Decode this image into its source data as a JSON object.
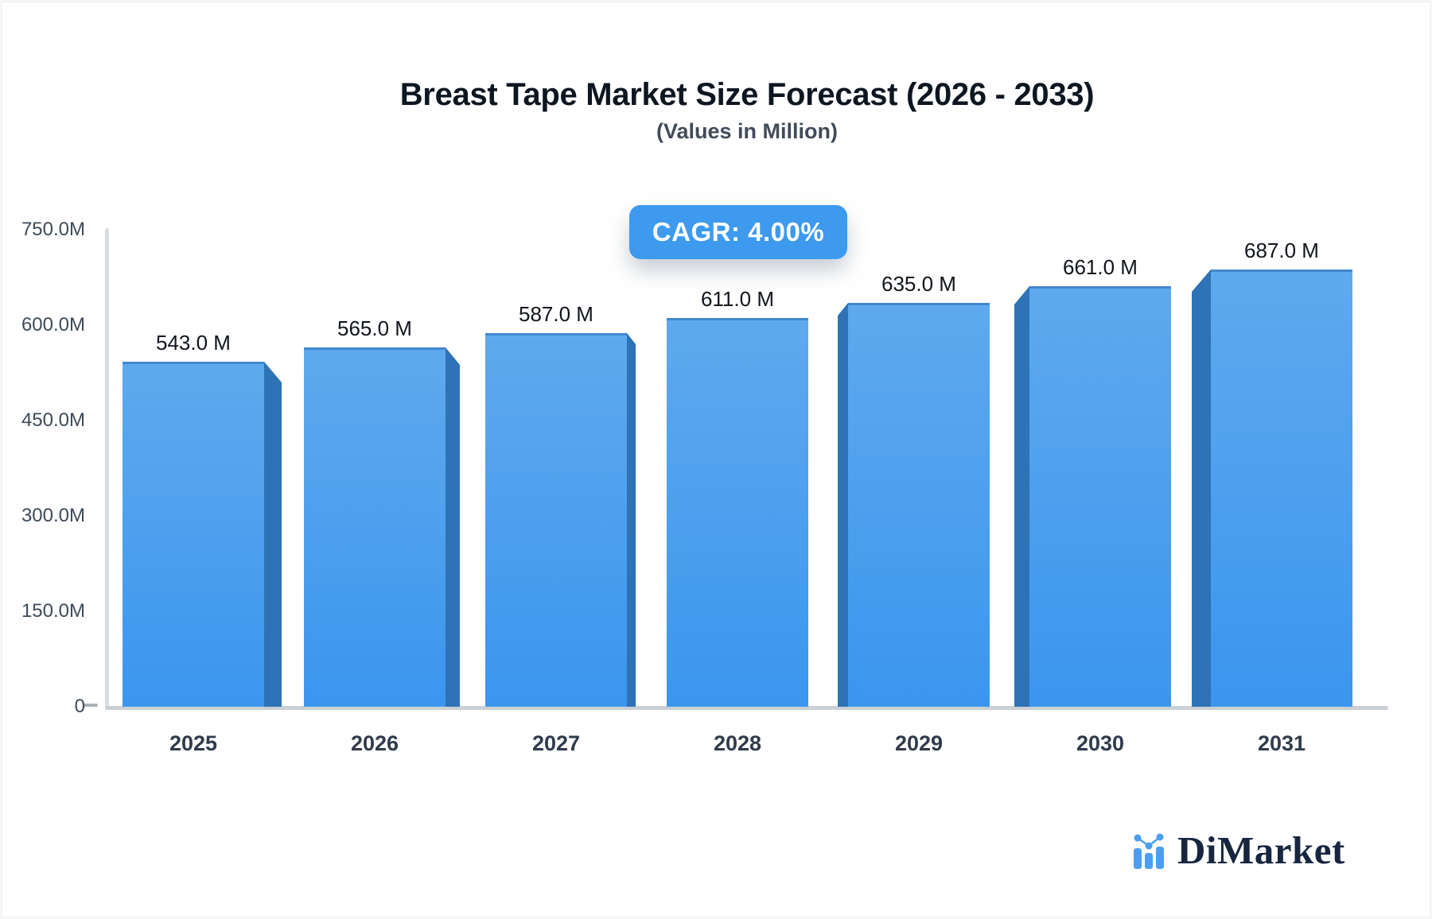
{
  "header": {
    "title": "Breast Tape Market Size Forecast (2026 - 2033)",
    "subtitle": "(Values in Million)"
  },
  "cagr_badge": {
    "label": "CAGR: 4.00%",
    "background_color": "#3D9AEE",
    "text_color": "#FFFFFF"
  },
  "chart_data": {
    "type": "bar",
    "title": "Breast Tape Market Size Forecast (2026 - 2033)",
    "subtitle": "(Values in Million)",
    "unit": "Million",
    "categories": [
      "2025",
      "2026",
      "2027",
      "2028",
      "2029",
      "2030",
      "2031"
    ],
    "values": [
      543,
      565,
      587,
      611,
      635,
      661,
      687
    ],
    "bar_labels": [
      "543.0 M",
      "565.0 M",
      "587.0 M",
      "611.0 M",
      "635.0 M",
      "661.0 M",
      "687.0 M"
    ],
    "y_axis": {
      "min": 0,
      "max": 750,
      "ticks": [
        {
          "value": 750,
          "label": "750.0M"
        },
        {
          "value": 600,
          "label": "600.0M"
        },
        {
          "value": 450,
          "label": "450.0M"
        },
        {
          "value": 300,
          "label": "300.0M"
        },
        {
          "value": 150,
          "label": "150.0M"
        },
        {
          "value": 0,
          "label": "0"
        }
      ]
    },
    "grid": false,
    "legend": false,
    "bar_face_color_top": "#5FA9EE",
    "bar_face_color_bottom": "#3B96EE",
    "bar_side_color": "#2E73B5"
  },
  "logo": {
    "text": "DiMarket",
    "text_color": "#17253F",
    "icon_color": "#4B9EF0",
    "icon_name": "dimarket-bar-chart-icon"
  }
}
